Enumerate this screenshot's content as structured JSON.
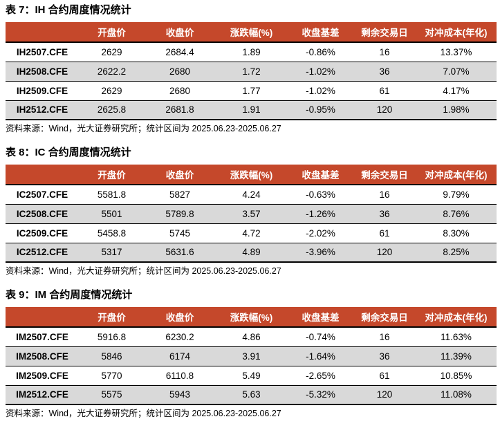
{
  "colors": {
    "header_bg": "#C5482B",
    "header_text": "#FFFFFF",
    "row_stripe_bg": "#D9D9D9",
    "row_plain_bg": "#FFFFFF",
    "border": "#000000",
    "text": "#000000"
  },
  "columns": [
    "",
    "开盘价",
    "收盘价",
    "涨跌幅(%)",
    "收盘基差",
    "剩余交易日",
    "对冲成本(年化)"
  ],
  "tables": [
    {
      "title": "表 7：IH 合约周度情况统计",
      "rows": [
        [
          "IH2507.CFE",
          "2629",
          "2684.4",
          "1.89",
          "-0.86%",
          "16",
          "13.37%"
        ],
        [
          "IH2508.CFE",
          "2622.2",
          "2680",
          "1.72",
          "-1.02%",
          "36",
          "7.07%"
        ],
        [
          "IH2509.CFE",
          "2629",
          "2680",
          "1.77",
          "-1.02%",
          "61",
          "4.17%"
        ],
        [
          "IH2512.CFE",
          "2625.8",
          "2681.8",
          "1.91",
          "-0.95%",
          "120",
          "1.98%"
        ]
      ],
      "source": "资料来源：Wind，光大证券研究所；统计区间为 2025.06.23-2025.06.27"
    },
    {
      "title": "表 8：IC 合约周度情况统计",
      "rows": [
        [
          "IC2507.CFE",
          "5581.8",
          "5827",
          "4.24",
          "-0.63%",
          "16",
          "9.79%"
        ],
        [
          "IC2508.CFE",
          "5501",
          "5789.8",
          "3.57",
          "-1.26%",
          "36",
          "8.76%"
        ],
        [
          "IC2509.CFE",
          "5458.8",
          "5745",
          "4.72",
          "-2.02%",
          "61",
          "8.30%"
        ],
        [
          "IC2512.CFE",
          "5317",
          "5631.6",
          "4.89",
          "-3.96%",
          "120",
          "8.25%"
        ]
      ],
      "source": "资料来源：Wind，光大证券研究所；统计区间为 2025.06.23-2025.06.27"
    },
    {
      "title": "表 9：IM 合约周度情况统计",
      "rows": [
        [
          "IM2507.CFE",
          "5916.8",
          "6230.2",
          "4.86",
          "-0.74%",
          "16",
          "11.63%"
        ],
        [
          "IM2508.CFE",
          "5846",
          "6174",
          "3.91",
          "-1.64%",
          "36",
          "11.39%"
        ],
        [
          "IM2509.CFE",
          "5770",
          "6110.8",
          "5.49",
          "-2.65%",
          "61",
          "10.85%"
        ],
        [
          "IM2512.CFE",
          "5575",
          "5943",
          "5.63",
          "-5.32%",
          "120",
          "11.08%"
        ]
      ],
      "source": "资料来源：Wind，光大证券研究所；统计区间为 2025.06.23-2025.06.27"
    }
  ]
}
